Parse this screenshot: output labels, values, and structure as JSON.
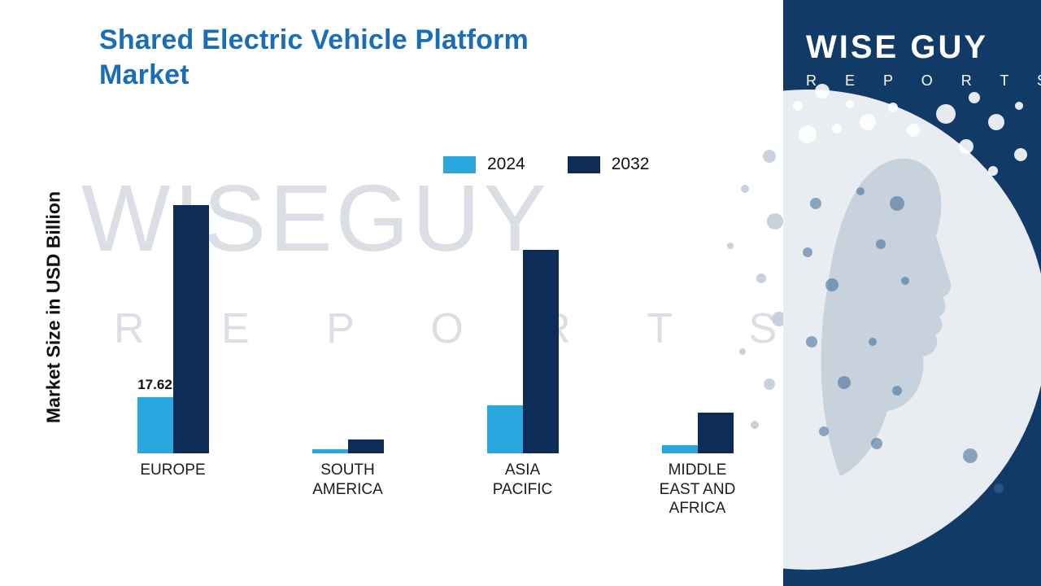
{
  "title": {
    "line1": "Shared Electric Vehicle Platform",
    "line2": "Market"
  },
  "brand": {
    "name_line": "WISE GUY",
    "reports_line": "R E P O R T S"
  },
  "watermark": {
    "line1": "WISEGUY",
    "line2": "R E P O R T S"
  },
  "colors": {
    "title_blue": "#1b6eb5",
    "panel_navy": "#123a67",
    "series_2024": "#2aa7de",
    "series_2032": "#0e2c58",
    "watermark_gray": "#dbdfe5"
  },
  "chart_data": {
    "type": "bar",
    "title": "Shared Electric Vehicle Platform Market",
    "xlabel": "",
    "ylabel": "Market Size in USD Billion",
    "categories": [
      "EUROPE",
      "SOUTH AMERICA",
      "ASIA PACIFIC",
      "MIDDLE EAST AND AFRICA"
    ],
    "series": [
      {
        "name": "2024",
        "color": "#2aa7de",
        "values": [
          17.62,
          1.3,
          15.1,
          2.5
        ]
      },
      {
        "name": "2032",
        "color": "#0e2c58",
        "values": [
          77.4,
          4.2,
          63.5,
          12.6
        ]
      }
    ],
    "value_labels": [
      {
        "series": "2024",
        "category": "EUROPE",
        "category_index": 0,
        "text": "17.62"
      }
    ],
    "ylim": [
      0,
      80
    ],
    "grid": false,
    "legend_position": "top-center"
  }
}
